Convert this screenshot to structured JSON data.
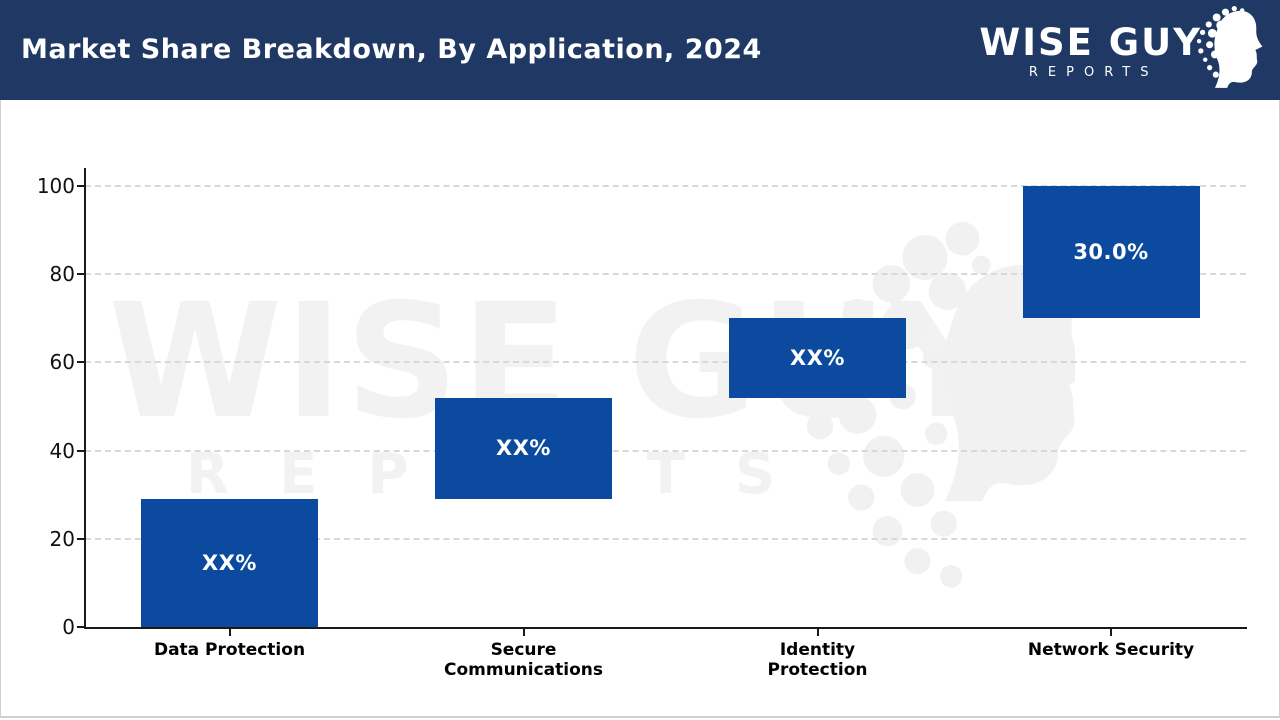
{
  "header": {
    "title": "Market Share Breakdown, By Application, 2024",
    "logo": {
      "line1": "WISE GUY",
      "line2": "REPORTS"
    }
  },
  "watermark": {
    "line1": "WISE GUY",
    "line2": "REPORTS"
  },
  "chart_data": {
    "type": "bar",
    "subtype": "waterfall",
    "title": "Market Share Breakdown, By Application, 2024",
    "categories": [
      "Data Protection",
      "Secure\nCommunications",
      "Identity\nProtection",
      "Network Security"
    ],
    "segments": [
      {
        "category": "Data Protection",
        "start": 0,
        "end": 29,
        "value": 29,
        "label": "XX%"
      },
      {
        "category": "Secure Communications",
        "start": 29,
        "end": 52,
        "value": 23,
        "label": "XX%"
      },
      {
        "category": "Identity Protection",
        "start": 52,
        "end": 70,
        "value": 18,
        "label": "XX%"
      },
      {
        "category": "Network Security",
        "start": 70,
        "end": 100,
        "value": 30,
        "label": "30.0%"
      }
    ],
    "xlabel": "",
    "ylabel": "",
    "ylim": [
      0,
      100
    ],
    "yticks": [
      0,
      20,
      40,
      60,
      80,
      100
    ],
    "grid": "horizontal-dashed",
    "legend": "none",
    "bar_color": "#0b4a9e",
    "bar_label_color": "#ffffff",
    "axis_color": "#1a1a1a",
    "grid_color": "#d8d8d8",
    "header_color": "#1f3864"
  }
}
